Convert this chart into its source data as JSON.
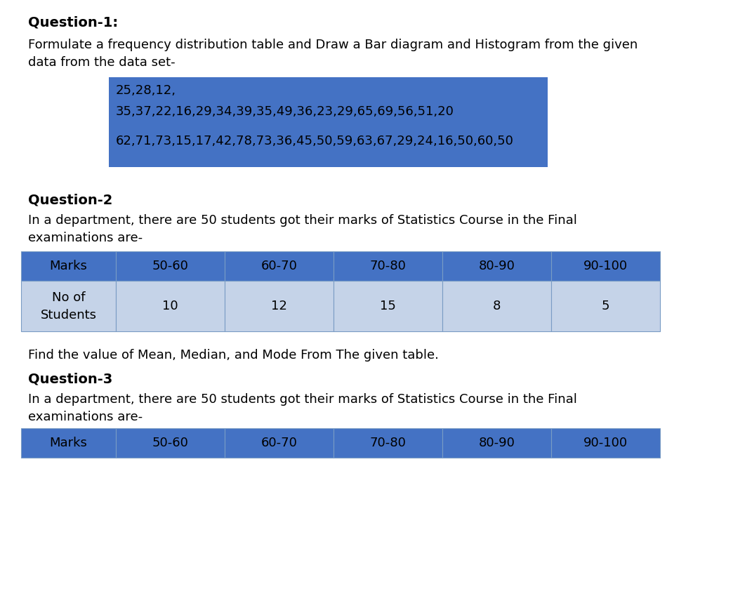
{
  "bg_color": "#ffffff",
  "q1_label": "Question-1:",
  "q1_text1": "Formulate a frequency distribution table and Draw a Bar diagram and Histogram from the given",
  "q1_text2": "data from the data set-",
  "data_box_color": "#4472C4",
  "data_box_text_line1": "25,28,12,",
  "data_box_text_line2": "35,37,22,16,29,34,39,35,49,36,23,29,65,69,56,51,20",
  "data_box_text_line3": "62,71,73,15,17,42,78,73,36,45,50,59,63,67,29,24,16,50,60,50",
  "q2_label": "Question-2",
  "q2_text1": "In a department, there are 50 students got their marks of Statistics Course in the Final",
  "q2_text2": "examinations are-",
  "q2_table_header": [
    "Marks",
    "50-60",
    "60-70",
    "70-80",
    "80-90",
    "90-100"
  ],
  "q2_row1_label": "No of\nStudents",
  "q2_row1_values": [
    "10",
    "12",
    "15",
    "8",
    "5"
  ],
  "q2_footer": "Find the value of Mean, Median, and Mode From The given table.",
  "q3_label": "Question-3",
  "q3_text1": "In a department, there are 50 students got their marks of Statistics Course in the Final",
  "q3_text2": "examinations are-",
  "q3_table_header": [
    "Marks",
    "50-60",
    "60-70",
    "70-80",
    "80-90",
    "90-100"
  ],
  "table_header_color": "#4472C4",
  "table_row_color": "#C5D3E8",
  "table_border_color": "#7a9cc4",
  "table_text_color": "#000000",
  "header_text_color": "#000000",
  "font_size_heading": 14,
  "font_size_body": 13,
  "font_size_table": 13
}
